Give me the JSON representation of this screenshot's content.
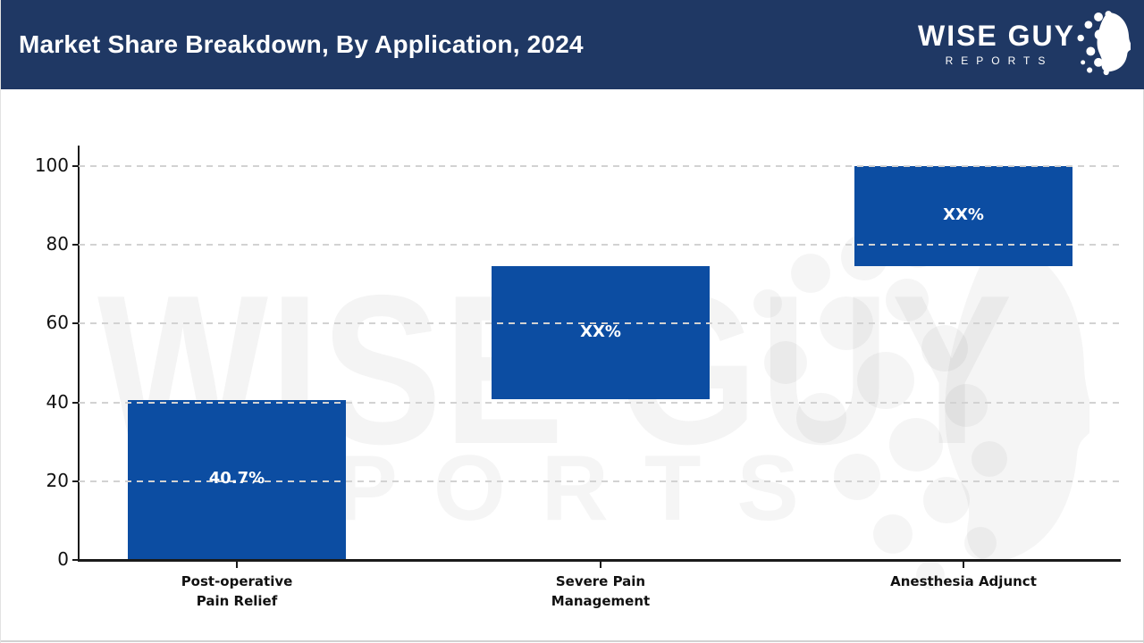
{
  "header": {
    "title": "Market Share Breakdown, By Application, 2024",
    "bg_color": "#1f3864",
    "logo": {
      "line1": "WISE GUY",
      "line2": "REPORTS"
    }
  },
  "watermark": {
    "line1": "WISE GUY",
    "line2": "REPORTS"
  },
  "chart_data": {
    "type": "bar",
    "subtype": "waterfall",
    "title": "",
    "xlabel": "",
    "ylabel": "",
    "categories": [
      "Post-operative\nPain Relief",
      "Severe Pain\nManagement",
      "Anesthesia Adjunct"
    ],
    "segments": [
      {
        "category": "Post-operative Pain Relief",
        "start": 0,
        "end": 40.7,
        "label": "40.7%"
      },
      {
        "category": "Severe Pain Management",
        "start": 40.7,
        "end": 74.6,
        "label": "XX%"
      },
      {
        "category": "Anesthesia Adjunct",
        "start": 74.6,
        "end": 100,
        "label": "XX%"
      }
    ],
    "yticks": [
      0,
      20,
      40,
      60,
      80,
      100
    ],
    "ylim": [
      0,
      105
    ],
    "grid": "dashed-horizontal-over-bars",
    "legend": null,
    "bar_color": "#0c4da2",
    "label_color": "#ffffff"
  }
}
